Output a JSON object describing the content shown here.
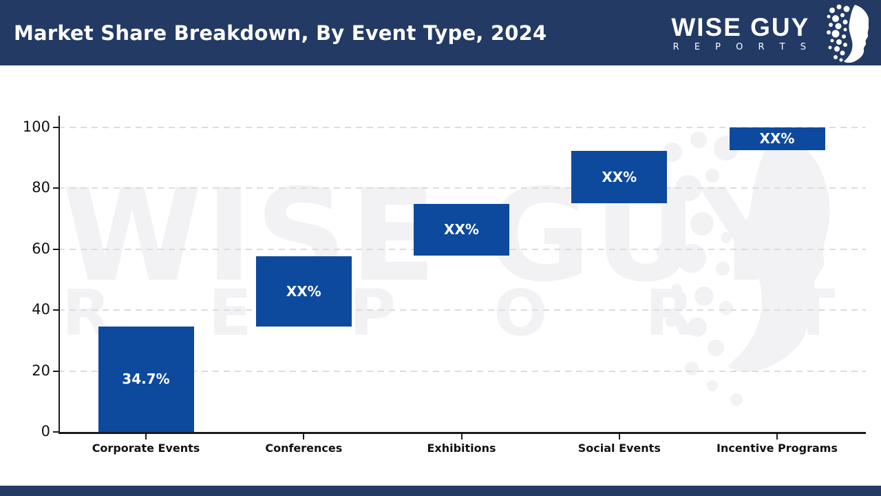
{
  "header": {
    "title": "Market Share Breakdown, By Event Type, 2024",
    "bg_color": "#223a64",
    "logo": {
      "line1": "WISE GUY",
      "line2": "REPORTS"
    }
  },
  "footer": {
    "bg_color": "#223a64"
  },
  "watermark": {
    "line1": "WISE GUY",
    "line2": "REPORTS"
  },
  "chart_data": {
    "type": "bar",
    "subtype": "floating-waterfall",
    "title": "Market Share Breakdown, By Event Type, 2024",
    "categories": [
      "Corporate Events",
      "Conferences",
      "Exhibitions",
      "Social Events",
      "Incentive Programs"
    ],
    "series": [
      {
        "name": "Market share (%)",
        "segments": [
          [
            0,
            34.7
          ],
          [
            34.7,
            57.8
          ],
          [
            58.0,
            75.0
          ],
          [
            75.0,
            92.4
          ],
          [
            92.6,
            100.0
          ]
        ]
      }
    ],
    "bar_labels": [
      "34.7%",
      "XX%",
      "XX%",
      "XX%",
      "XX%"
    ],
    "yticks": [
      0,
      20,
      40,
      60,
      80,
      100
    ],
    "ylim": [
      0,
      104
    ],
    "xlabel": "",
    "ylabel": "",
    "grid": "horizontal-dashed",
    "legend": "none",
    "bar_color": "#0d4a9e",
    "bar_label_color": "#ffffff",
    "axis_color": "#1a1a1a",
    "grid_color": "#dcdcdc"
  }
}
